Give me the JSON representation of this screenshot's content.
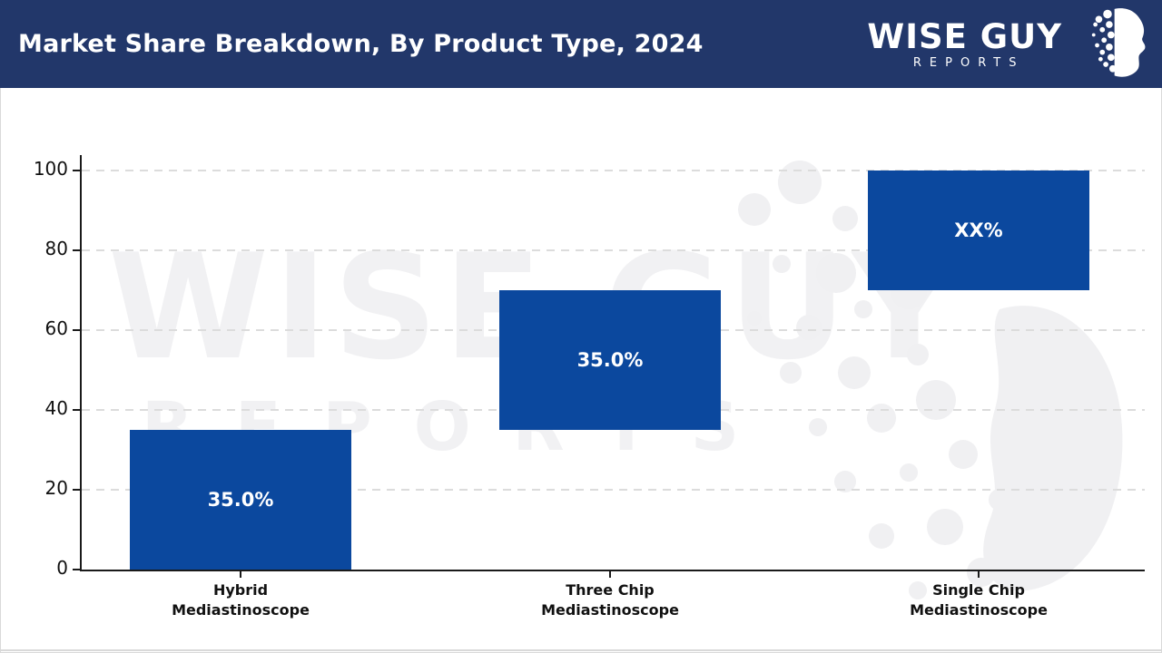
{
  "header": {
    "title": "Market Share Breakdown, By Product Type, 2024",
    "logo": {
      "line1": "WISE GUY",
      "line2": "REPORTS"
    }
  },
  "watermark": {
    "line1": "WISE GUY",
    "line2": "REPORTS"
  },
  "chart_data": {
    "type": "bar",
    "variant": "floating-segment-bars (waterfall-style market share)",
    "title": "Market Share Breakdown, By Product Type, 2024",
    "categories": [
      "Hybrid\nMediastinoscope",
      "Three Chip\nMediastinoscope",
      "Single Chip\nMediastinoscope"
    ],
    "bars": [
      {
        "category": "Hybrid Mediastinoscope",
        "from": 0,
        "to": 35,
        "label": "35.0%"
      },
      {
        "category": "Three Chip Mediastinoscope",
        "from": 35,
        "to": 70,
        "label": "35.0%"
      },
      {
        "category": "Single Chip Mediastinoscope",
        "from": 70,
        "to": 100,
        "label": "XX%"
      }
    ],
    "yticks": [
      0,
      20,
      40,
      60,
      80,
      100
    ],
    "ylim": [
      0,
      104
    ],
    "xlabel": "",
    "ylabel": "",
    "grid": "horizontal-dashed",
    "legend": "none"
  },
  "colors": {
    "header_bg": "#22376a",
    "bar": "#0b489e",
    "grid": "#dcdcdc",
    "axis": "#1a1a1a",
    "watermark": "#f1f1f3"
  }
}
